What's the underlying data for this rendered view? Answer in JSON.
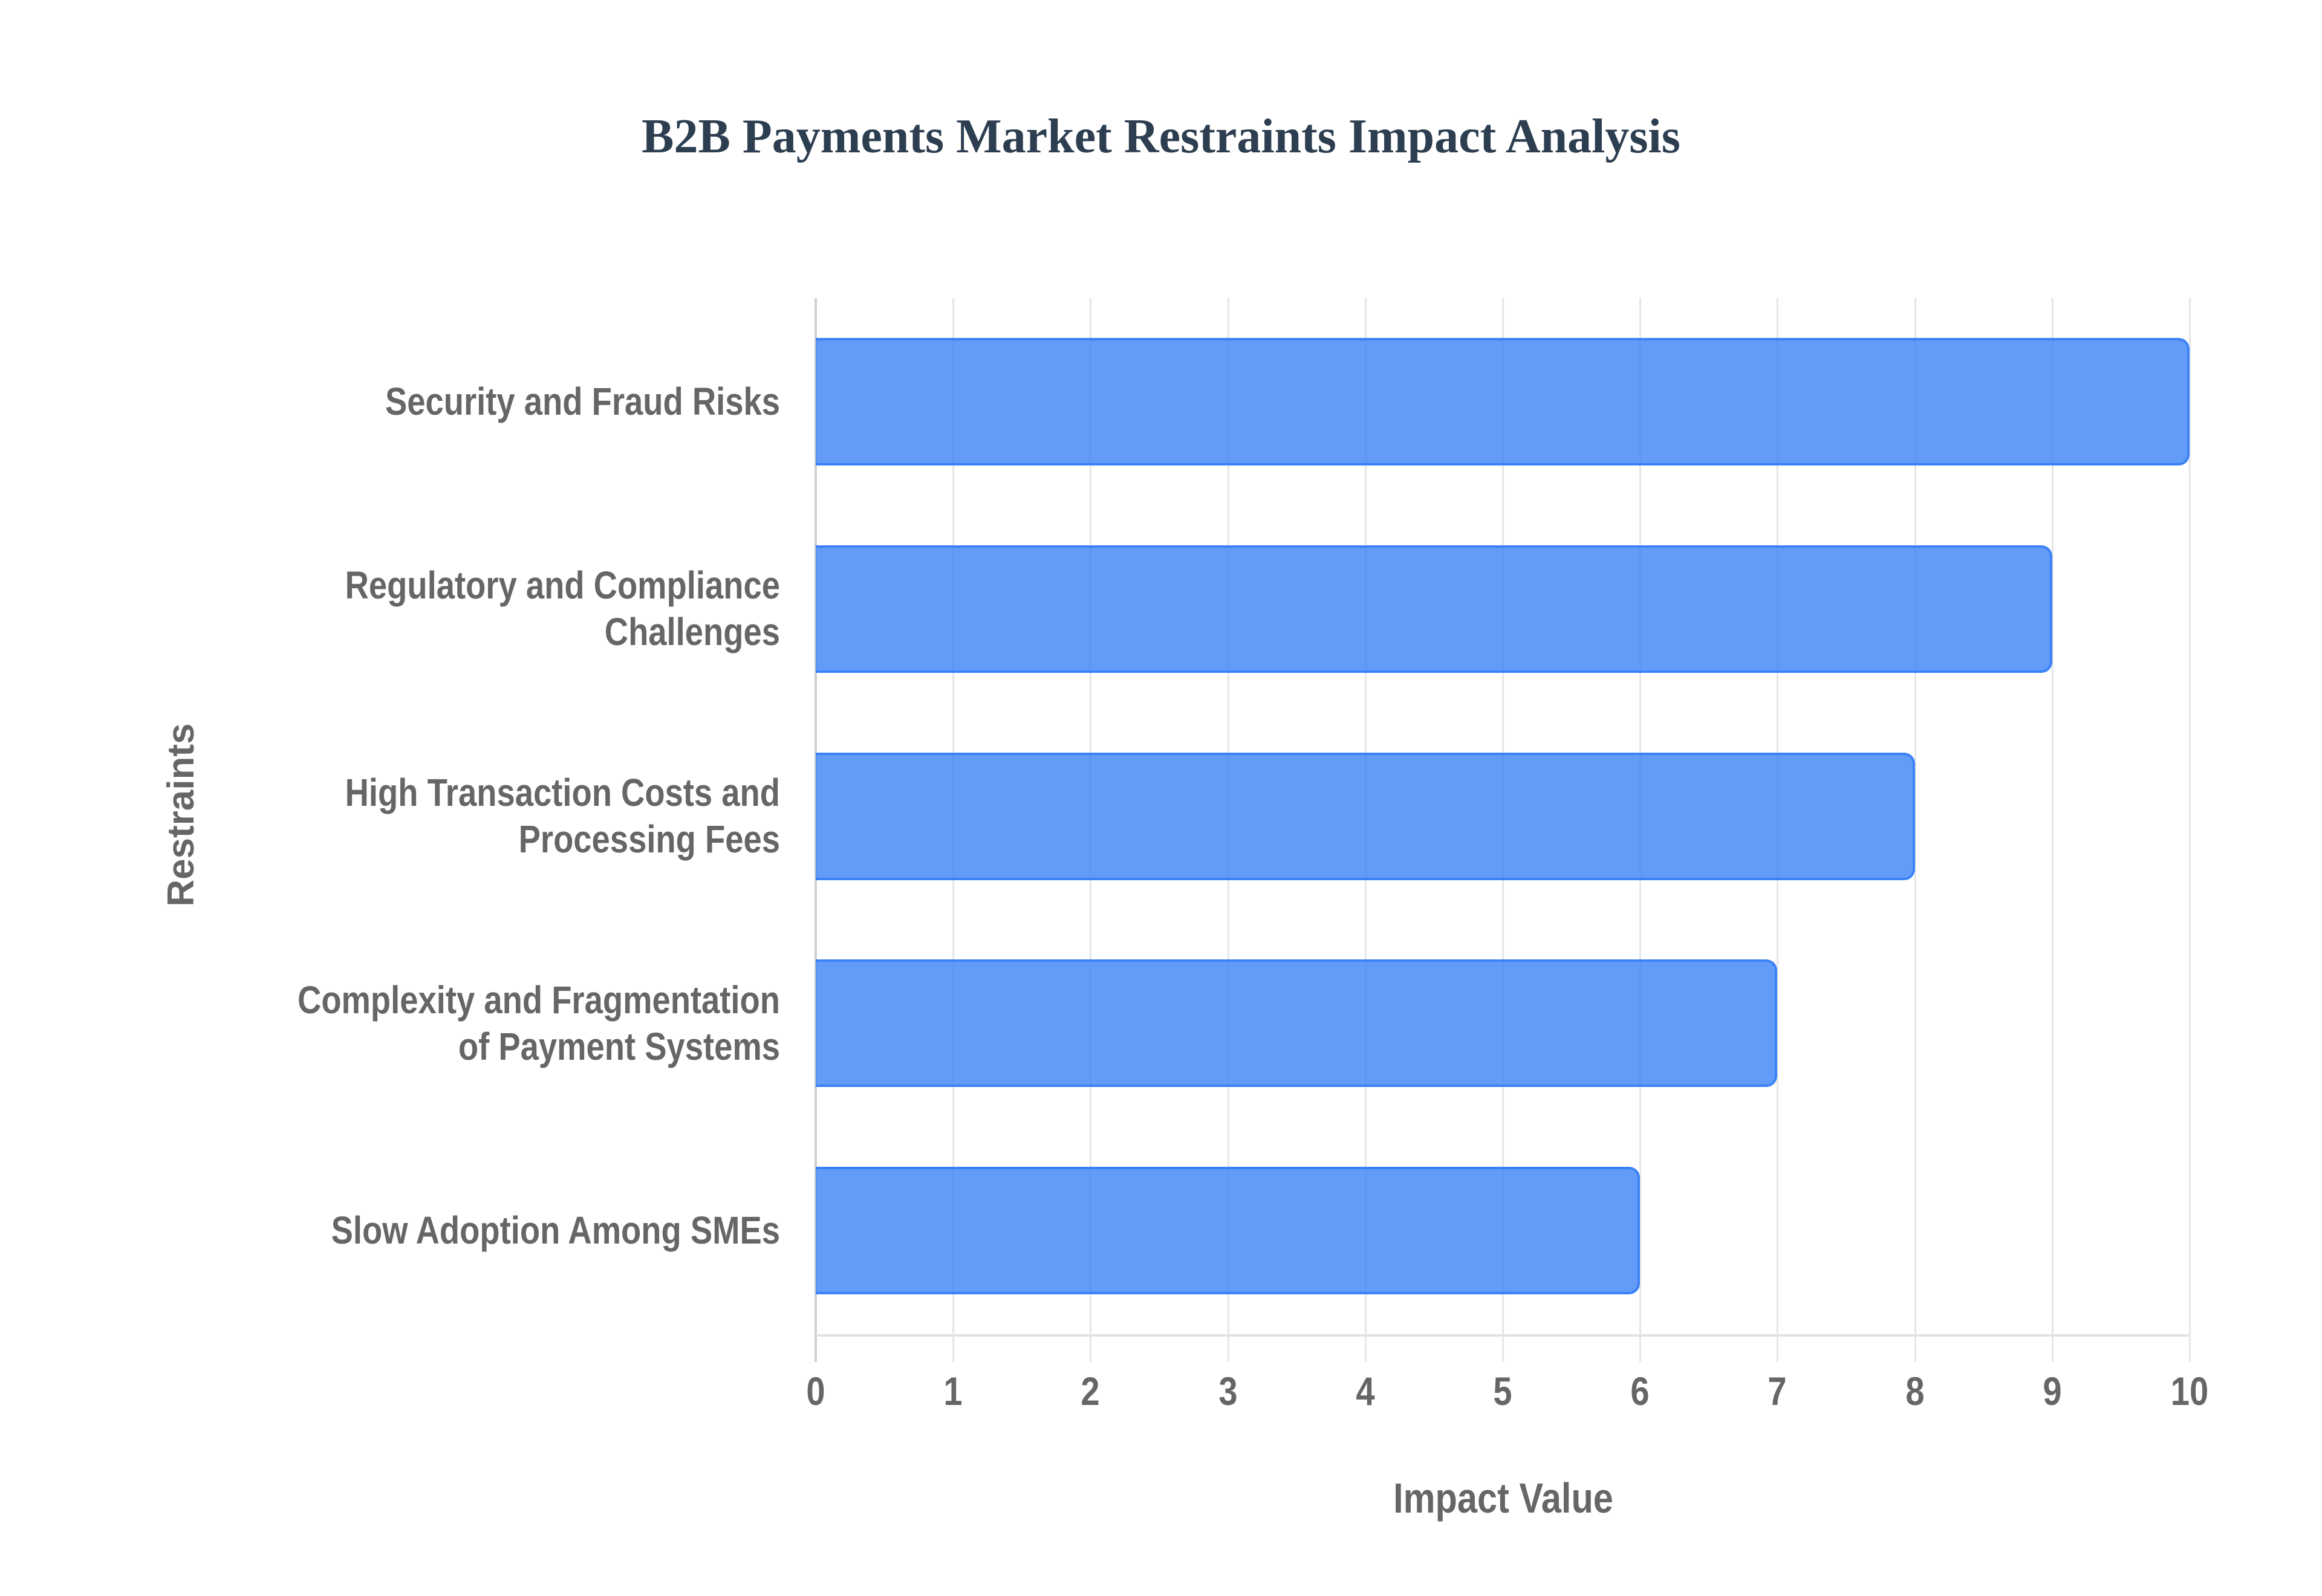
{
  "title": "B2B Payments Market Restraints Impact Analysis",
  "x_axis": {
    "title": "Impact Value",
    "ticks": [
      "0",
      "1",
      "2",
      "3",
      "4",
      "5",
      "6",
      "7",
      "8",
      "9",
      "10"
    ]
  },
  "y_axis": {
    "title": "Restraints"
  },
  "categories": [
    {
      "lines": [
        "Security and Fraud Risks"
      ],
      "value": 10
    },
    {
      "lines": [
        "Regulatory and Compliance",
        "Challenges"
      ],
      "value": 9
    },
    {
      "lines": [
        "High Transaction Costs and",
        "Processing Fees"
      ],
      "value": 8
    },
    {
      "lines": [
        "Complexity and Fragmentation",
        "of Payment Systems"
      ],
      "value": 7
    },
    {
      "lines": [
        "Slow Adoption Among SMEs"
      ],
      "value": 6
    }
  ],
  "colors": {
    "bar_fill": "#6399f5",
    "bar_border": "#3b82f6",
    "title": "#2c3e50",
    "text": "#666666",
    "grid": "#e6e6e6"
  },
  "chart_data": {
    "type": "bar",
    "orientation": "horizontal",
    "title": "B2B Payments Market Restraints Impact Analysis",
    "categories": [
      "Security and Fraud Risks",
      "Regulatory and Compliance Challenges",
      "High Transaction Costs and Processing Fees",
      "Complexity and Fragmentation of Payment Systems",
      "Slow Adoption Among SMEs"
    ],
    "values": [
      10,
      9,
      8,
      7,
      6
    ],
    "xlabel": "Impact Value",
    "ylabel": "Restraints",
    "xlim": [
      0,
      10
    ],
    "x_ticks": [
      0,
      1,
      2,
      3,
      4,
      5,
      6,
      7,
      8,
      9,
      10
    ],
    "grid": {
      "vertical": true,
      "horizontal": false
    },
    "legend": null
  }
}
